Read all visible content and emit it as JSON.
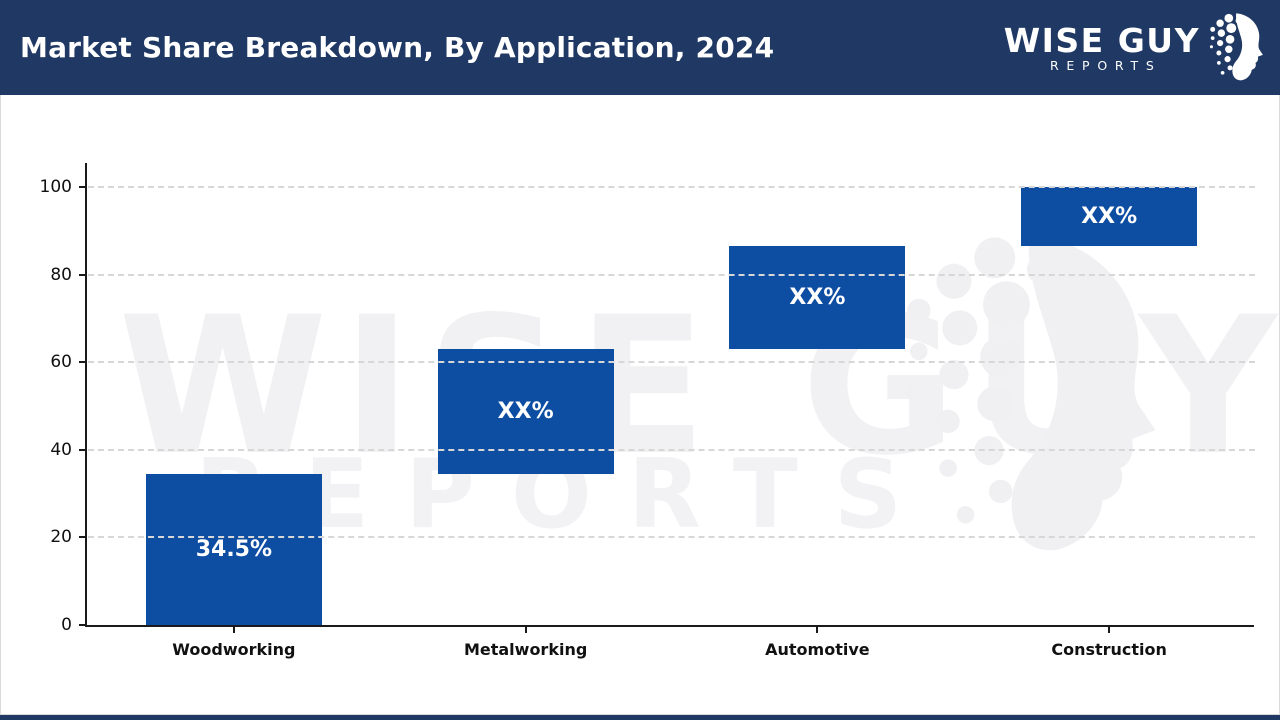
{
  "header": {
    "title": "Market Share Breakdown, By Application, 2024",
    "bg_color": "#1f3864",
    "logo": {
      "line1": "WISE GUY",
      "line2": "REPORTS"
    }
  },
  "watermark": {
    "line1": "WISE GUY",
    "line2": "REPORTS"
  },
  "chart_data": {
    "type": "bar",
    "subtype": "waterfall",
    "title": "Market Share Breakdown, By Application, 2024",
    "categories": [
      "Woodworking",
      "Metalworking",
      "Automotive",
      "Construction"
    ],
    "segments": [
      {
        "category": "Woodworking",
        "start": 0,
        "end": 34.5,
        "label": "34.5%"
      },
      {
        "category": "Metalworking",
        "start": 34.5,
        "end": 63,
        "label": "XX%"
      },
      {
        "category": "Automotive",
        "start": 63,
        "end": 86.5,
        "label": "XX%"
      },
      {
        "category": "Construction",
        "start": 86.5,
        "end": 100,
        "label": "XX%"
      }
    ],
    "y_ticks": [
      0,
      20,
      40,
      60,
      80,
      100
    ],
    "ylim": [
      0,
      105
    ],
    "xlabel": "",
    "ylabel": "",
    "grid": "horizontal-dashed",
    "legend": "none",
    "bar_color": "#0d4da2",
    "bar_label_color": "#ffffff",
    "axis_color": "#1a1a1a",
    "grid_color": "#d7d7d7"
  }
}
